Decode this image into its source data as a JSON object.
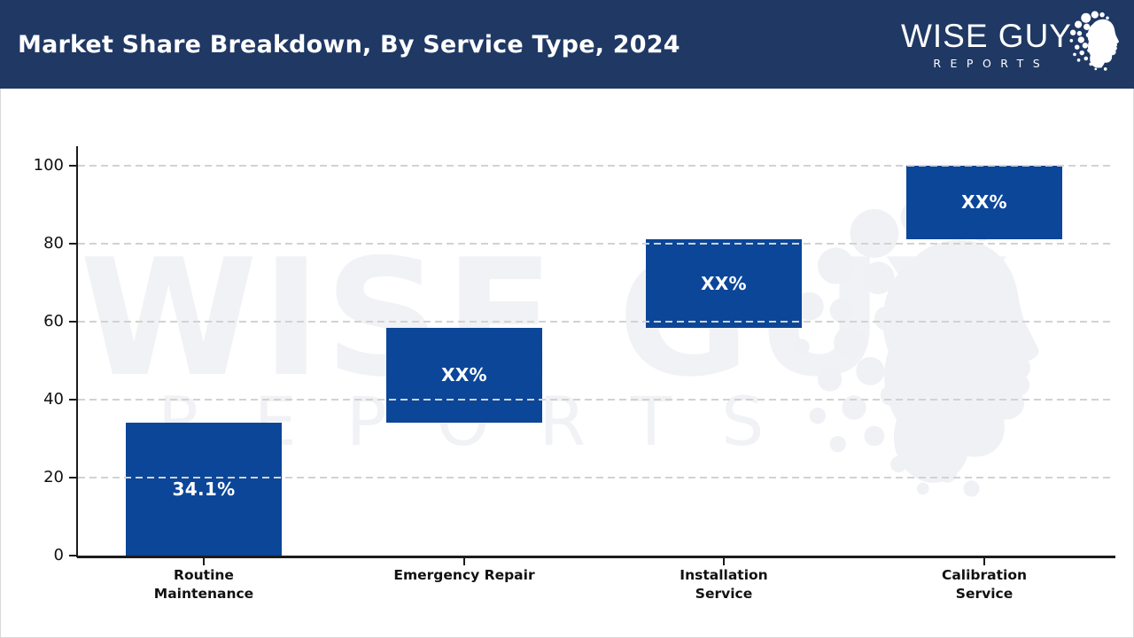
{
  "header": {
    "title": "Market Share Breakdown, By Service Type, 2024",
    "logo": {
      "line1": "WISE GUY",
      "line2": "REPORTS"
    }
  },
  "watermark": {
    "line1": "WISE GUY",
    "line2": "REPORTS"
  },
  "colors": {
    "header_bg": "#1f3864",
    "bar": "#0b4699",
    "bar_label": "#ffffff",
    "grid": "#d2d2d2",
    "axis": "#1c1c1c",
    "watermark": "#f1f2f5"
  },
  "chart_data": {
    "type": "bar",
    "subtype": "waterfall",
    "title": "Market Share Breakdown, By Service Type, 2024",
    "xlabel": "",
    "ylabel": "",
    "ylim": [
      0,
      105
    ],
    "yticks": [
      0,
      20,
      40,
      60,
      80,
      100
    ],
    "grid": "horizontal dashed",
    "legend": "none",
    "categories": [
      "Routine Maintenance",
      "Emergency Repair",
      "Installation Service",
      "Calibration Service"
    ],
    "values": [
      34.1,
      24.3,
      22.8,
      18.8
    ],
    "bars": [
      {
        "category": "Routine Maintenance",
        "category_lines": [
          "Routine",
          "Maintenance"
        ],
        "start": 0,
        "end": 34.1,
        "value": 34.1,
        "label": "34.1%"
      },
      {
        "category": "Emergency Repair",
        "category_lines": [
          "Emergency Repair"
        ],
        "start": 34.1,
        "end": 58.4,
        "value": 24.3,
        "label": "XX%"
      },
      {
        "category": "Installation Service",
        "category_lines": [
          "Installation",
          "Service"
        ],
        "start": 58.4,
        "end": 81.2,
        "value": 22.8,
        "label": "XX%"
      },
      {
        "category": "Calibration Service",
        "category_lines": [
          "Calibration",
          "Service"
        ],
        "start": 81.2,
        "end": 100,
        "value": 18.8,
        "label": "XX%"
      }
    ]
  }
}
